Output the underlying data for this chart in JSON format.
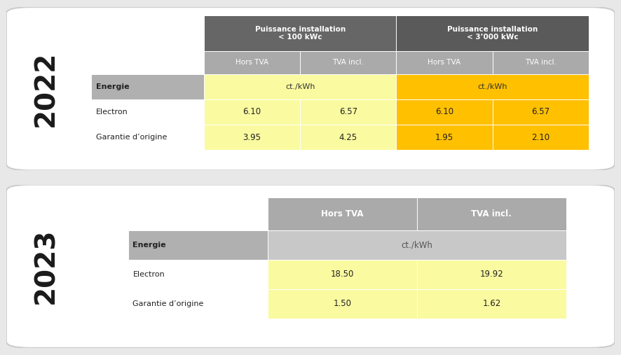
{
  "year2022": {
    "year_label": "2022",
    "header1": "Puissance installation\n< 100 kWc",
    "header2": "Puissance installation\n< 3’000 kWc",
    "sub_headers": [
      "Hors TVA",
      "TVA incl.",
      "Hors TVA",
      "TVA incl."
    ],
    "rows": [
      {
        "label": "Energie",
        "values": [
          "ct./kWh",
          "ct./kWh"
        ],
        "type": "unit",
        "label_bg": "#b0b0b0",
        "color_left": "#fafaa0",
        "color_right": "#ffc000"
      },
      {
        "label": "Electron",
        "values": [
          "6.10",
          "6.57",
          "6.10",
          "6.57"
        ],
        "type": "data",
        "label_bg": "#ffffff",
        "color_left": "#fafaa0",
        "color_right": "#ffc000"
      },
      {
        "label": "Garantie d’origine",
        "values": [
          "3.95",
          "4.25",
          "1.95",
          "2.10"
        ],
        "type": "data",
        "label_bg": "#ffffff",
        "color_left": "#fafaa0",
        "color_right": "#ffc000"
      }
    ]
  },
  "year2023": {
    "year_label": "2023",
    "sub_headers": [
      "Hors TVA",
      "TVA incl."
    ],
    "rows": [
      {
        "label": "Energie",
        "values": [
          "ct./kWh"
        ],
        "type": "unit",
        "label_bg": "#b0b0b0",
        "color": "#c8c8c8"
      },
      {
        "label": "Electron",
        "values": [
          "18.50",
          "19.92"
        ],
        "type": "data",
        "label_bg": "#ffffff",
        "color": "#fafaa0"
      },
      {
        "label": "Garantie d’origine",
        "values": [
          "1.50",
          "1.62"
        ],
        "type": "data",
        "label_bg": "#ffffff",
        "color": "#fafaa0"
      }
    ]
  },
  "colors": {
    "header_dark": "#666666",
    "subheader_gray": "#aaaaaa",
    "text_dark": "#222222",
    "text_value": "#333333",
    "white": "#ffffff",
    "bg": "#e8e8e8"
  }
}
